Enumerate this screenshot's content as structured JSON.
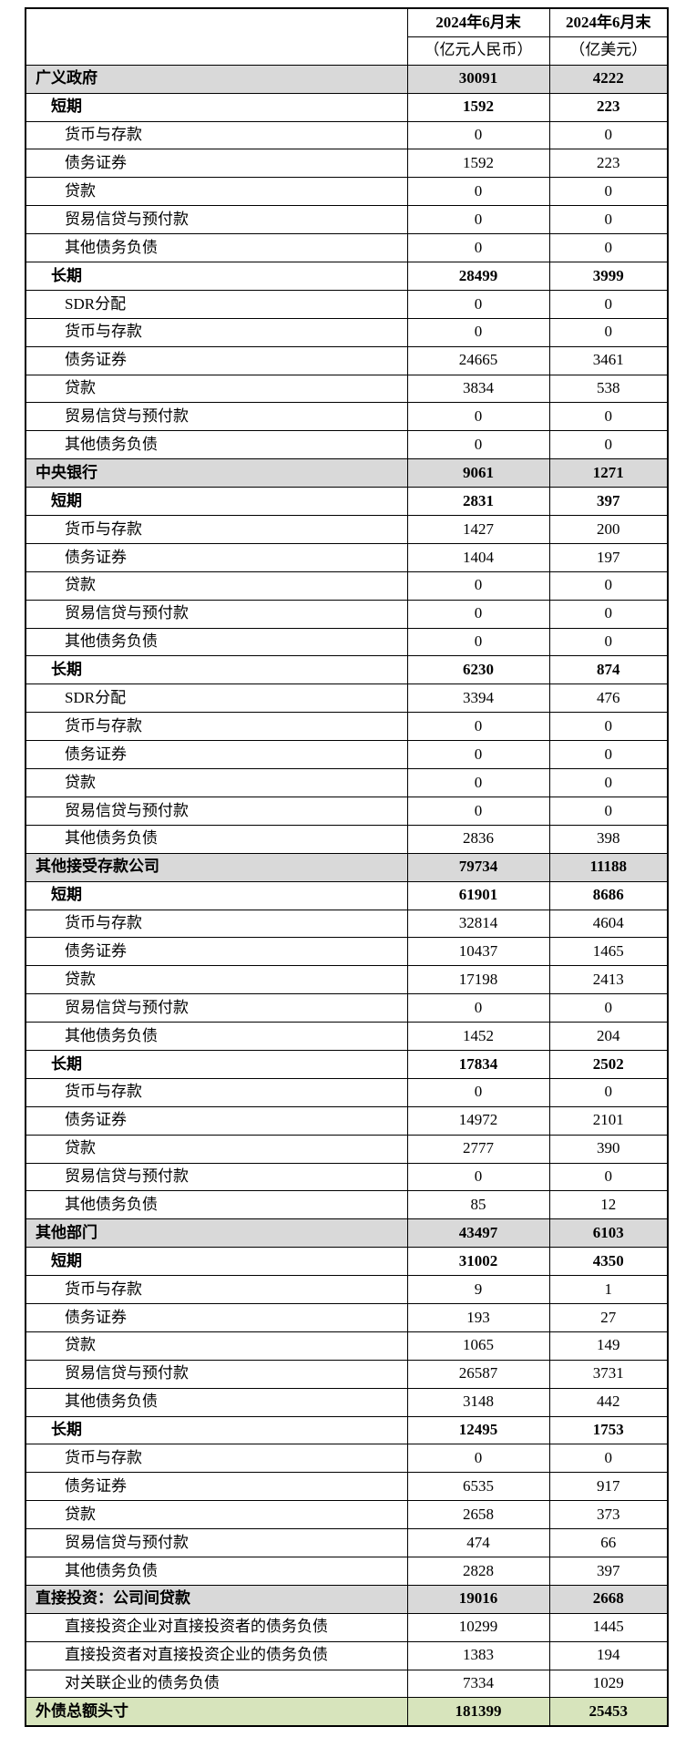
{
  "table": {
    "colors": {
      "section_row_background": "#d9d9d9",
      "total_row_background": "#d7e4bc",
      "border": "#000000",
      "page_background": "#ffffff"
    },
    "header": {
      "corner": "",
      "rmb_period": "2024年6月末",
      "rmb_unit": "（亿元人民币）",
      "usd_period": "2024年6月末",
      "usd_unit": "（亿美元）"
    },
    "rows": [
      {
        "type": "section",
        "label": "广义政府",
        "rmb": "30091",
        "usd": "4222"
      },
      {
        "type": "subtotal",
        "label": "短期",
        "rmb": "1592",
        "usd": "223"
      },
      {
        "type": "item",
        "label": "货币与存款",
        "rmb": "0",
        "usd": "0"
      },
      {
        "type": "item",
        "label": "债务证券",
        "rmb": "1592",
        "usd": "223"
      },
      {
        "type": "item",
        "label": "贷款",
        "rmb": "0",
        "usd": "0"
      },
      {
        "type": "item",
        "label": "贸易信贷与预付款",
        "rmb": "0",
        "usd": "0"
      },
      {
        "type": "item",
        "label": "其他债务负债",
        "rmb": "0",
        "usd": "0"
      },
      {
        "type": "subtotal",
        "label": "长期",
        "rmb": "28499",
        "usd": "3999"
      },
      {
        "type": "item",
        "label": "SDR分配",
        "rmb": "0",
        "usd": "0"
      },
      {
        "type": "item",
        "label": "货币与存款",
        "rmb": "0",
        "usd": "0"
      },
      {
        "type": "item",
        "label": "债务证券",
        "rmb": "24665",
        "usd": "3461"
      },
      {
        "type": "item",
        "label": "贷款",
        "rmb": "3834",
        "usd": "538"
      },
      {
        "type": "item",
        "label": "贸易信贷与预付款",
        "rmb": "0",
        "usd": "0"
      },
      {
        "type": "item",
        "label": "其他债务负债",
        "rmb": "0",
        "usd": "0"
      },
      {
        "type": "section",
        "label": "中央银行",
        "rmb": "9061",
        "usd": "1271"
      },
      {
        "type": "subtotal",
        "label": "短期",
        "rmb": "2831",
        "usd": "397"
      },
      {
        "type": "item",
        "label": "货币与存款",
        "rmb": "1427",
        "usd": "200"
      },
      {
        "type": "item",
        "label": "债务证券",
        "rmb": "1404",
        "usd": "197"
      },
      {
        "type": "item",
        "label": "贷款",
        "rmb": "0",
        "usd": "0"
      },
      {
        "type": "item",
        "label": "贸易信贷与预付款",
        "rmb": "0",
        "usd": "0"
      },
      {
        "type": "item",
        "label": "其他债务负债",
        "rmb": "0",
        "usd": "0"
      },
      {
        "type": "subtotal",
        "label": "长期",
        "rmb": "6230",
        "usd": "874"
      },
      {
        "type": "item",
        "label": "SDR分配",
        "rmb": "3394",
        "usd": "476"
      },
      {
        "type": "item",
        "label": "货币与存款",
        "rmb": "0",
        "usd": "0"
      },
      {
        "type": "item",
        "label": "债务证券",
        "rmb": "0",
        "usd": "0"
      },
      {
        "type": "item",
        "label": "贷款",
        "rmb": "0",
        "usd": "0"
      },
      {
        "type": "item",
        "label": "贸易信贷与预付款",
        "rmb": "0",
        "usd": "0"
      },
      {
        "type": "item",
        "label": "其他债务负债",
        "rmb": "2836",
        "usd": "398"
      },
      {
        "type": "section",
        "label": "其他接受存款公司",
        "rmb": "79734",
        "usd": "11188"
      },
      {
        "type": "subtotal",
        "label": "短期",
        "rmb": "61901",
        "usd": "8686"
      },
      {
        "type": "item",
        "label": "货币与存款",
        "rmb": "32814",
        "usd": "4604"
      },
      {
        "type": "item",
        "label": "债务证券",
        "rmb": "10437",
        "usd": "1465"
      },
      {
        "type": "item",
        "label": "贷款",
        "rmb": "17198",
        "usd": "2413"
      },
      {
        "type": "item",
        "label": "贸易信贷与预付款",
        "rmb": "0",
        "usd": "0"
      },
      {
        "type": "item",
        "label": "其他债务负债",
        "rmb": "1452",
        "usd": "204"
      },
      {
        "type": "subtotal",
        "label": "长期",
        "rmb": "17834",
        "usd": "2502"
      },
      {
        "type": "item",
        "label": "货币与存款",
        "rmb": "0",
        "usd": "0"
      },
      {
        "type": "item",
        "label": "债务证券",
        "rmb": "14972",
        "usd": "2101"
      },
      {
        "type": "item",
        "label": "贷款",
        "rmb": "2777",
        "usd": "390"
      },
      {
        "type": "item",
        "label": "贸易信贷与预付款",
        "rmb": "0",
        "usd": "0"
      },
      {
        "type": "item",
        "label": "其他债务负债",
        "rmb": "85",
        "usd": "12"
      },
      {
        "type": "section",
        "label": "其他部门",
        "rmb": "43497",
        "usd": "6103"
      },
      {
        "type": "subtotal",
        "label": "短期",
        "rmb": "31002",
        "usd": "4350"
      },
      {
        "type": "item",
        "label": "货币与存款",
        "rmb": "9",
        "usd": "1"
      },
      {
        "type": "item",
        "label": "债务证券",
        "rmb": "193",
        "usd": "27"
      },
      {
        "type": "item",
        "label": "贷款",
        "rmb": "1065",
        "usd": "149"
      },
      {
        "type": "item",
        "label": "贸易信贷与预付款",
        "rmb": "26587",
        "usd": "3731"
      },
      {
        "type": "item",
        "label": "其他债务负债",
        "rmb": "3148",
        "usd": "442"
      },
      {
        "type": "subtotal",
        "label": "长期",
        "rmb": "12495",
        "usd": "1753"
      },
      {
        "type": "item",
        "label": "货币与存款",
        "rmb": "0",
        "usd": "0"
      },
      {
        "type": "item",
        "label": "债务证券",
        "rmb": "6535",
        "usd": "917"
      },
      {
        "type": "item",
        "label": "贷款",
        "rmb": "2658",
        "usd": "373"
      },
      {
        "type": "item",
        "label": "贸易信贷与预付款",
        "rmb": "474",
        "usd": "66"
      },
      {
        "type": "item",
        "label": "其他债务负债",
        "rmb": "2828",
        "usd": "397"
      },
      {
        "type": "section",
        "label": "直接投资：公司间贷款",
        "rmb": "19016",
        "usd": "2668"
      },
      {
        "type": "item",
        "label": "直接投资企业对直接投资者的债务负债",
        "rmb": "10299",
        "usd": "1445"
      },
      {
        "type": "item",
        "label": "直接投资者对直接投资企业的债务负债",
        "rmb": "1383",
        "usd": "194"
      },
      {
        "type": "item",
        "label": "对关联企业的债务负债",
        "rmb": "7334",
        "usd": "1029"
      },
      {
        "type": "total",
        "label": "外债总额头寸",
        "rmb": "181399",
        "usd": "25453"
      }
    ]
  }
}
